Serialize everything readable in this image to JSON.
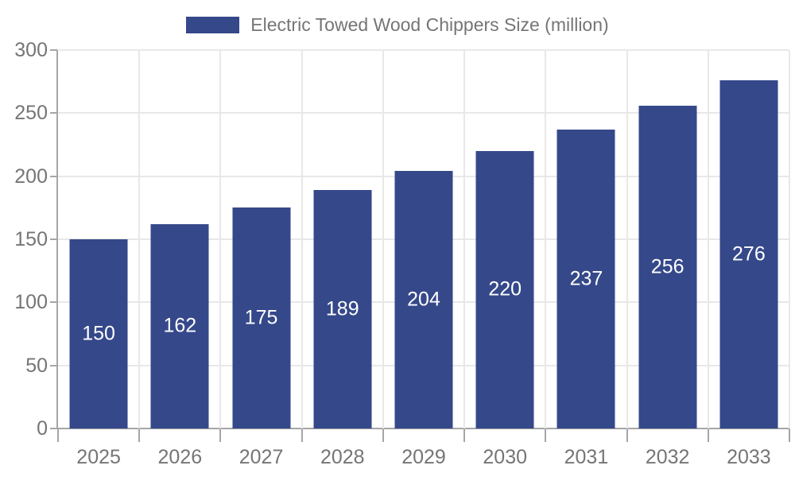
{
  "chart_data": {
    "type": "bar",
    "title": "Electric Towed Wood Chippers Size (million)",
    "legend": {
      "position": "top",
      "label": "Electric Towed Wood Chippers Size (million)"
    },
    "categories": [
      "2025",
      "2026",
      "2027",
      "2028",
      "2029",
      "2030",
      "2031",
      "2032",
      "2033"
    ],
    "values": [
      150,
      162,
      175,
      189,
      204,
      220,
      237,
      256,
      276
    ],
    "xlabel": "",
    "ylabel": "",
    "ylim": [
      0,
      300
    ],
    "yticks": [
      0,
      50,
      100,
      150,
      200,
      250,
      300
    ],
    "grid": true,
    "colors": {
      "bar": "#35488A",
      "value_label": "#ffffff",
      "axis_text": "#757575",
      "grid_line": "#e8e8e8",
      "axis_line": "#a6a6a6"
    }
  }
}
